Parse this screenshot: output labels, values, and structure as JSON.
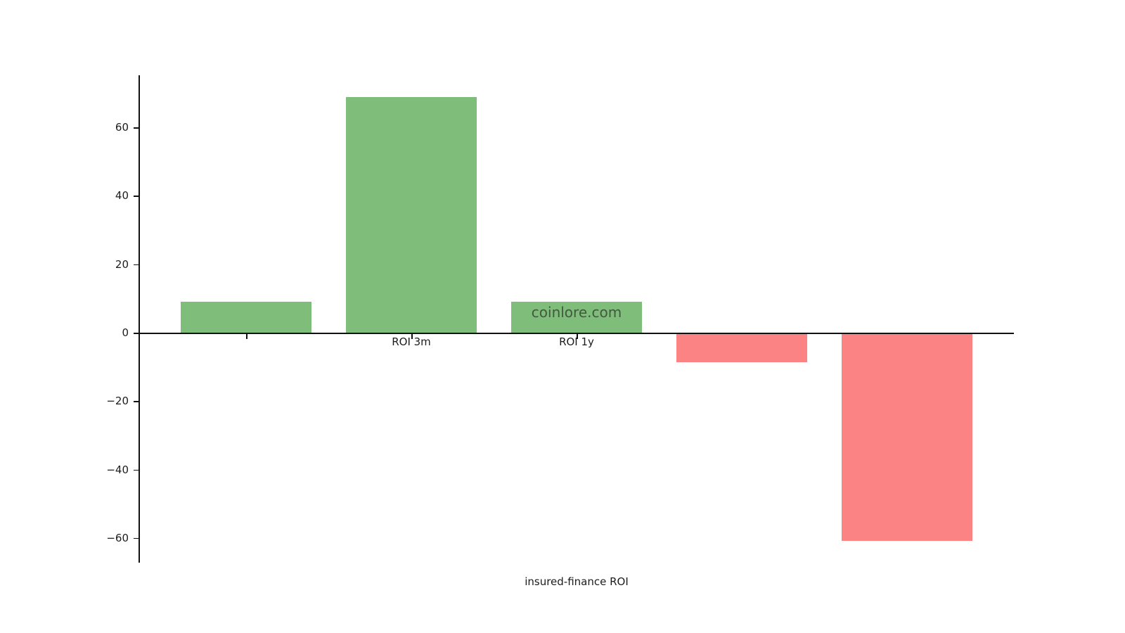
{
  "watermark": {
    "text": "coinlore.com",
    "color": "#43593f"
  },
  "chart_data": {
    "type": "bar",
    "title": "",
    "xlabel": "insured-finance ROI",
    "ylabel": "",
    "categories": [
      "",
      "ROI 3m",
      "ROI 1y",
      "",
      ""
    ],
    "values": [
      9.0,
      68.8,
      9.0,
      -8.3,
      -60.6
    ],
    "colors": {
      "positive": "#7ebd7a",
      "negative": "#fc8383"
    },
    "yticks": [
      {
        "value": 60,
        "label": "60"
      },
      {
        "value": 40,
        "label": "40"
      },
      {
        "value": 20,
        "label": "20"
      },
      {
        "value": 0,
        "label": "0"
      },
      {
        "value": -20,
        "label": "−20"
      },
      {
        "value": -40,
        "label": "−40"
      },
      {
        "value": -60,
        "label": "−60"
      }
    ],
    "xticks": [
      {
        "index": 0,
        "label": ""
      },
      {
        "index": 1,
        "label": "ROI 3m"
      },
      {
        "index": 2,
        "label": "ROI 1y"
      }
    ],
    "ylim": [
      -67,
      75
    ],
    "grid": false,
    "legend": null
  }
}
